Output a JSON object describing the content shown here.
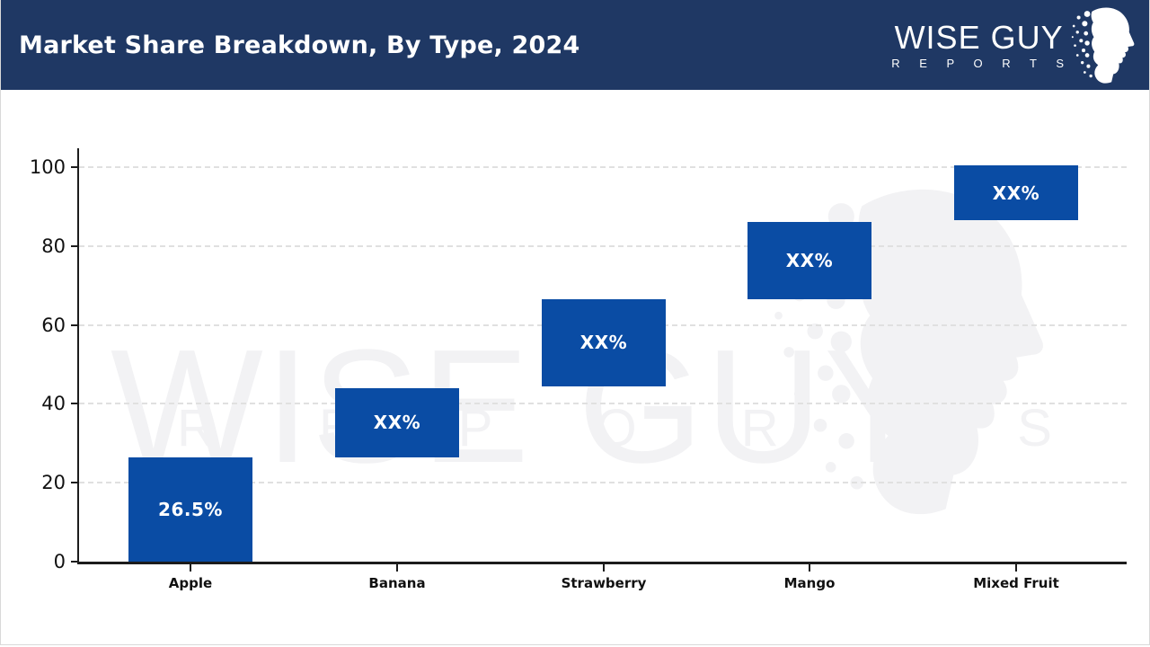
{
  "header": {
    "title": "Market Share Breakdown, By Type, 2024",
    "bg_color": "#1f3864",
    "logo": {
      "brand": "WISE GUY",
      "subtitle": "R E P O R T S"
    }
  },
  "watermark": {
    "brand": "WISE GUY",
    "subtitle": "R E P O R T S",
    "color": "#f2f2f4"
  },
  "chart_data": {
    "type": "bar",
    "variant": "floating-waterfall",
    "title": "Market Share Breakdown, By Type, 2024",
    "categories": [
      "Apple",
      "Banana",
      "Strawberry",
      "Mango",
      "Mixed Fruit"
    ],
    "series": [
      {
        "name": "Market Share (%)",
        "segments": [
          {
            "category": "Apple",
            "start": 0,
            "end": 26.5,
            "label": "26.5%"
          },
          {
            "category": "Banana",
            "start": 26.5,
            "end": 44,
            "label": "XX%"
          },
          {
            "category": "Strawberry",
            "start": 44.5,
            "end": 66.5,
            "label": "XX%"
          },
          {
            "category": "Mango",
            "start": 66.5,
            "end": 86,
            "label": "XX%"
          },
          {
            "category": "Mixed Fruit",
            "start": 86.5,
            "end": 100.5,
            "label": "XX%"
          }
        ]
      }
    ],
    "xlabel": "",
    "ylabel": "",
    "ylim": [
      0,
      105
    ],
    "yticks": [
      0,
      20,
      40,
      60,
      80,
      100
    ],
    "grid": "horizontal-dashed",
    "legend": "none",
    "bar_color": "#0a4ca4",
    "bar_label_color": "#ffffff",
    "axis_color": "#1c1c1c",
    "grid_color": "#e0e0e0"
  }
}
